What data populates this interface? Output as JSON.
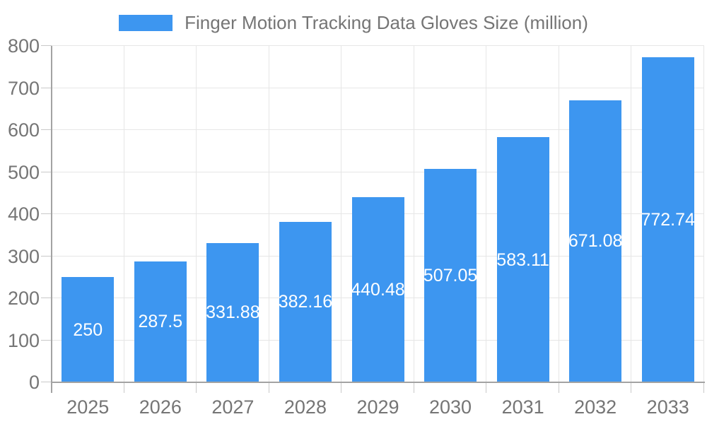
{
  "chart_data": {
    "type": "bar",
    "title": "Finger Motion Tracking Data Gloves Size (million)",
    "legend": {
      "label": "Finger Motion Tracking Data Gloves Size (million)",
      "position": "top"
    },
    "categories": [
      "2025",
      "2026",
      "2027",
      "2028",
      "2029",
      "2030",
      "2031",
      "2032",
      "2033"
    ],
    "series": [
      {
        "name": "Finger Motion Tracking Data Gloves Size (million)",
        "values": [
          250,
          287.5,
          331.88,
          382.16,
          440.48,
          507.05,
          583.11,
          671.08,
          772.74
        ],
        "value_labels": [
          "250",
          "287.5",
          "331.88",
          "382.16",
          "440.48",
          "507.05",
          "583.11",
          "671.08",
          "772.74"
        ]
      }
    ],
    "xlabel": "",
    "ylabel": "",
    "ylim": [
      0,
      800
    ],
    "ytick_step": 100,
    "ytick_labels": [
      "0",
      "100",
      "200",
      "300",
      "400",
      "500",
      "600",
      "700",
      "800"
    ],
    "grid": true,
    "value_labels_inside_bars": true,
    "colors": {
      "bar": "#3D96F0",
      "bar_value_label": "#FFFFFF",
      "axis_label": "#757575",
      "legend_text": "#757575",
      "gridline": "#E6E6E6",
      "tick": "#C9C9C9",
      "axis_line": "#A3A3A3",
      "background": "#FFFFFF"
    }
  }
}
